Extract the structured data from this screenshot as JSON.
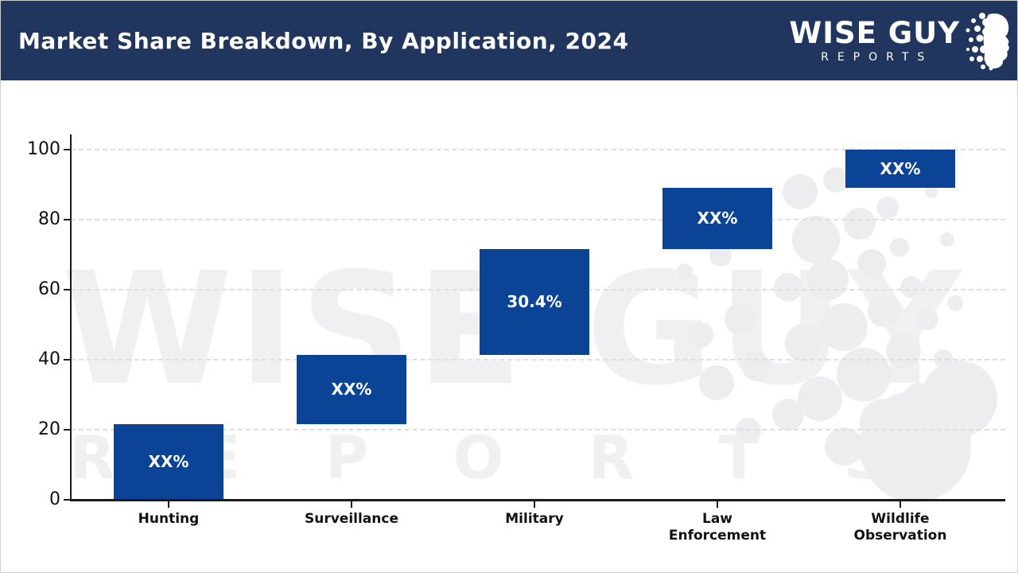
{
  "header": {
    "title": "Market Share Breakdown, By Application, 2024",
    "logo": {
      "line1": "WISE GUY",
      "line2": "REPORTS",
      "icon": "dotted-head-profile"
    },
    "background_color": "#21365f"
  },
  "watermark": {
    "line1": "WISE GUY",
    "line2": "R E P O R T S"
  },
  "chart_data": {
    "type": "bar",
    "subtype": "waterfall",
    "title": "Market Share Breakdown, By Application, 2024",
    "categories": [
      "Hunting",
      "Surveillance",
      "Military",
      "Law Enforcement",
      "Wildlife Observation"
    ],
    "segments": [
      {
        "category": "Hunting",
        "start": 0,
        "end": 21.7,
        "label": "XX%"
      },
      {
        "category": "Surveillance",
        "start": 21.7,
        "end": 41.3,
        "label": "XX%"
      },
      {
        "category": "Military",
        "start": 41.3,
        "end": 71.7,
        "label": "30.4%"
      },
      {
        "category": "Law Enforcement",
        "start": 71.7,
        "end": 89.1,
        "label": "XX%"
      },
      {
        "category": "Wildlife Observation",
        "start": 89.1,
        "end": 100,
        "label": "XX%"
      }
    ],
    "xlabel": "",
    "ylabel": "",
    "ylim": [
      0,
      100
    ],
    "yticks": [
      0,
      20,
      40,
      60,
      80,
      100
    ],
    "grid": "horizontal-dashed",
    "legend": "none",
    "bar_color": "#0b4397",
    "bar_label_color": "#ffffff"
  }
}
